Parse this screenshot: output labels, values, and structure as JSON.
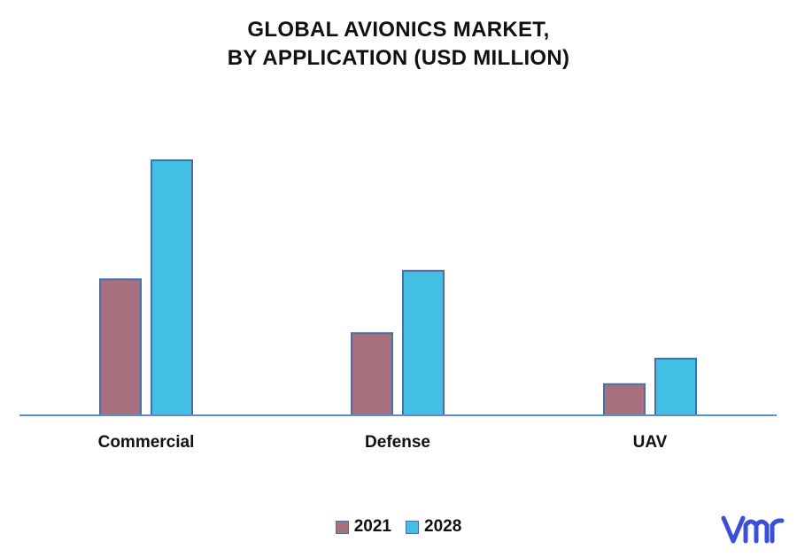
{
  "chart_data": {
    "type": "bar",
    "title_lines": [
      "GLOBAL AVIONICS MARKET,",
      "BY APPLICATION (USD MILLION)"
    ],
    "categories": [
      "Commercial",
      "Defense",
      "UAV"
    ],
    "series": [
      {
        "name": "2021",
        "values": [
          48,
          29,
          11
        ],
        "color": "#a8707f"
      },
      {
        "name": "2028",
        "values": [
          90,
          51,
          20
        ],
        "color": "#43bfe3"
      }
    ],
    "ylim": [
      0,
      100
    ],
    "grid": false,
    "legend_position": "bottom-center",
    "bar_border_color": "#4a6fa5",
    "axis_color": "#5b8fc7"
  },
  "brand": {
    "logo_icon": "vmr-logo-icon",
    "logo_color": "#3b4fd8"
  }
}
